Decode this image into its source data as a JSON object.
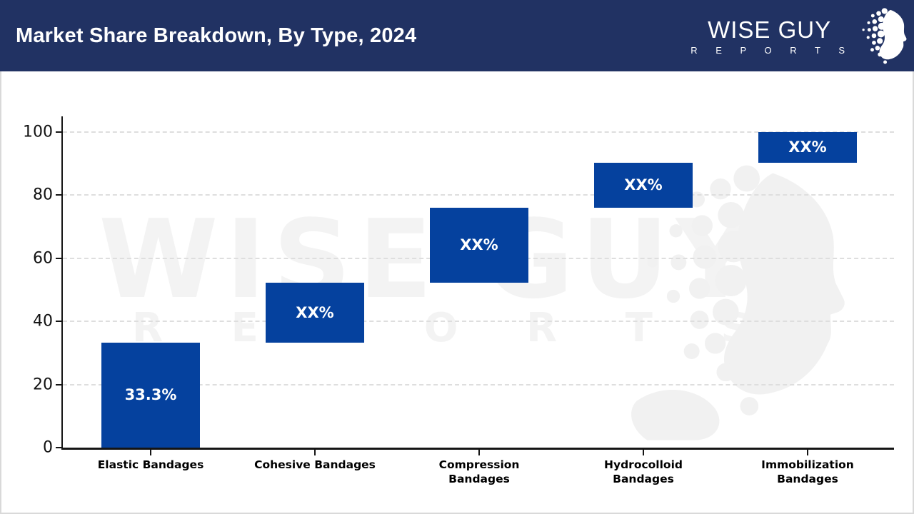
{
  "header": {
    "title": "Market Share Breakdown, By Type, 2024",
    "bg_color": "#213263",
    "logo": {
      "line1": "WISE GUY",
      "line2": "R E P O R T S"
    }
  },
  "watermark": {
    "line1": "WISE GUY",
    "line2": "R E P O R T S"
  },
  "chart_data": {
    "type": "bar",
    "subtype": "waterfall",
    "title": "Market Share Breakdown, By Type, 2024",
    "categories": [
      "Elastic Bandages",
      "Cohesive Bandages",
      "Compression Bandages",
      "Hydrocolloid Bandages",
      "Immobilization Bandages"
    ],
    "segments": [
      {
        "start": 0,
        "end": 33.3,
        "label": "33.3%"
      },
      {
        "start": 33.3,
        "end": 52.3,
        "label": "XX%"
      },
      {
        "start": 52.3,
        "end": 76.0,
        "label": "XX%"
      },
      {
        "start": 76.0,
        "end": 90.3,
        "label": "XX%"
      },
      {
        "start": 90.3,
        "end": 100.0,
        "label": "XX%"
      }
    ],
    "ylim": [
      0,
      100
    ],
    "yticks": [
      0,
      20,
      40,
      60,
      80,
      100
    ],
    "grid": "horizontal-dashed",
    "legend": "none",
    "xlabel": "",
    "ylabel": "",
    "bar_color": "#05419e",
    "bar_label_color": "#ffffff",
    "grid_color": "#dedede",
    "axis_color": "#151515"
  }
}
